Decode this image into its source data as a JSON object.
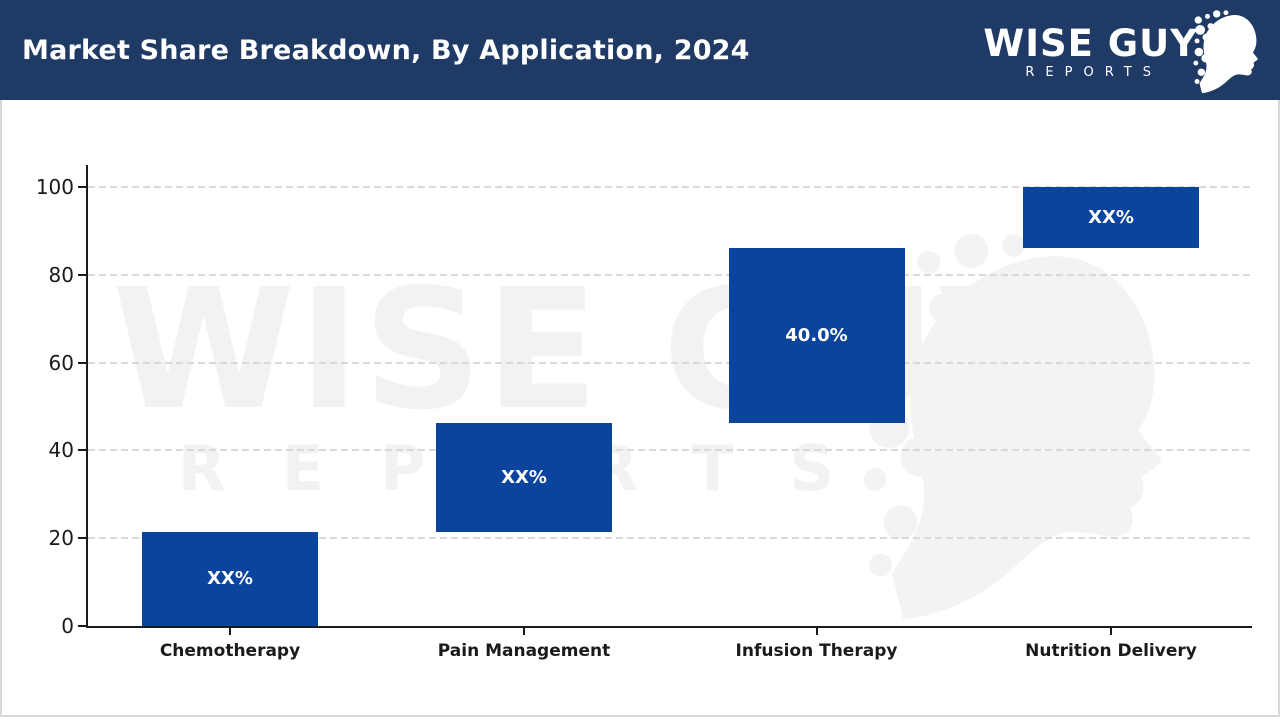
{
  "header": {
    "title": "Market Share Breakdown, By Application, 2024",
    "bg_color": "#203A66",
    "logo": {
      "line1": "WISE GUY",
      "line2": "REPORTS"
    }
  },
  "watermark": {
    "line1": "WISE GUY",
    "line2": "REPORTS"
  },
  "chart_data": {
    "type": "bar",
    "subtype": "floating-waterfall",
    "title": "Market Share Breakdown, By Application, 2024",
    "categories": [
      "Chemotherapy",
      "Pain Management",
      "Infusion Therapy",
      "Nutrition Delivery"
    ],
    "bars": [
      {
        "label": "XX%",
        "start": 0,
        "end": 21.5
      },
      {
        "label": "XX%",
        "start": 21.5,
        "end": 46.2
      },
      {
        "label": "40.0%",
        "start": 46.2,
        "end": 86.2
      },
      {
        "label": "XX%",
        "start": 86.2,
        "end": 100
      }
    ],
    "xlabel": "",
    "ylabel": "",
    "ylim": [
      0,
      100
    ],
    "yticks": [
      0,
      20,
      40,
      60,
      80,
      100
    ],
    "grid": "horizontal-dashed",
    "legend": "none",
    "colors": {
      "bar": "#0A449C",
      "bar_label": "#FFFFFF",
      "axis": "#1A1A1A",
      "gridline": "#D9D9D9",
      "tick_label": "#1A1A1A"
    }
  }
}
